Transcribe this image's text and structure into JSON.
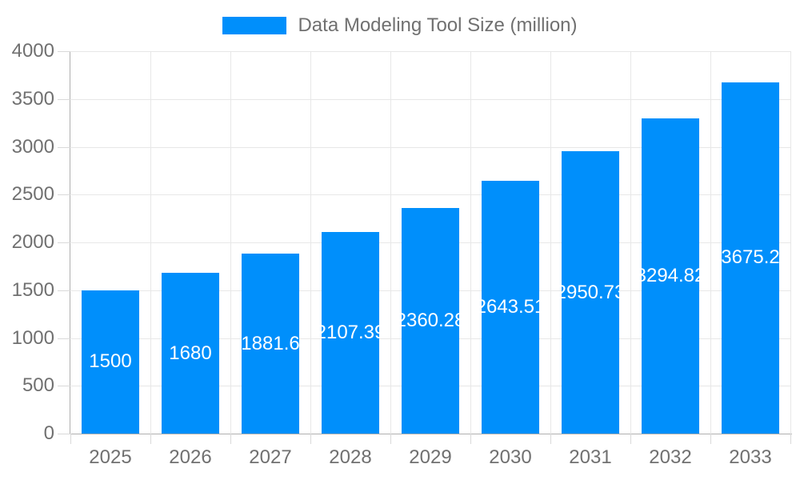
{
  "legend": {
    "label": "Data Modeling Tool Size (million)"
  },
  "chart_data": {
    "type": "bar",
    "title": "Data Modeling Tool Size (million)",
    "categories": [
      "2025",
      "2026",
      "2027",
      "2028",
      "2029",
      "2030",
      "2031",
      "2032",
      "2033"
    ],
    "series": [
      {
        "name": "Data Modeling Tool Size (million)",
        "values": [
          1500,
          1680,
          1881.6,
          2107.39,
          2360.28,
          2643.51,
          2950.73,
          3294.82,
          3675.2
        ]
      }
    ],
    "bar_labels": [
      "1500",
      "1680",
      "1881.6",
      "2107.39",
      "2360.28",
      "2643.51",
      "2950.73",
      "3294.82",
      "3675.2"
    ],
    "xlabel": "",
    "ylabel": "",
    "ylim": [
      0,
      4000
    ],
    "y_tick_labels": [
      "0",
      "500",
      "1000",
      "1500",
      "2000",
      "2500",
      "3000",
      "3500",
      "4000"
    ],
    "grid": true,
    "legend_position": "top-center",
    "colors": {
      "bar": "#008FFB",
      "bar_label_text": "#ffffff",
      "axis_text": "#707070",
      "gridline": "#e7e7e7",
      "tick": "#d9d9d9",
      "axis_line": "#b0b0b0",
      "background": "#ffffff"
    }
  }
}
